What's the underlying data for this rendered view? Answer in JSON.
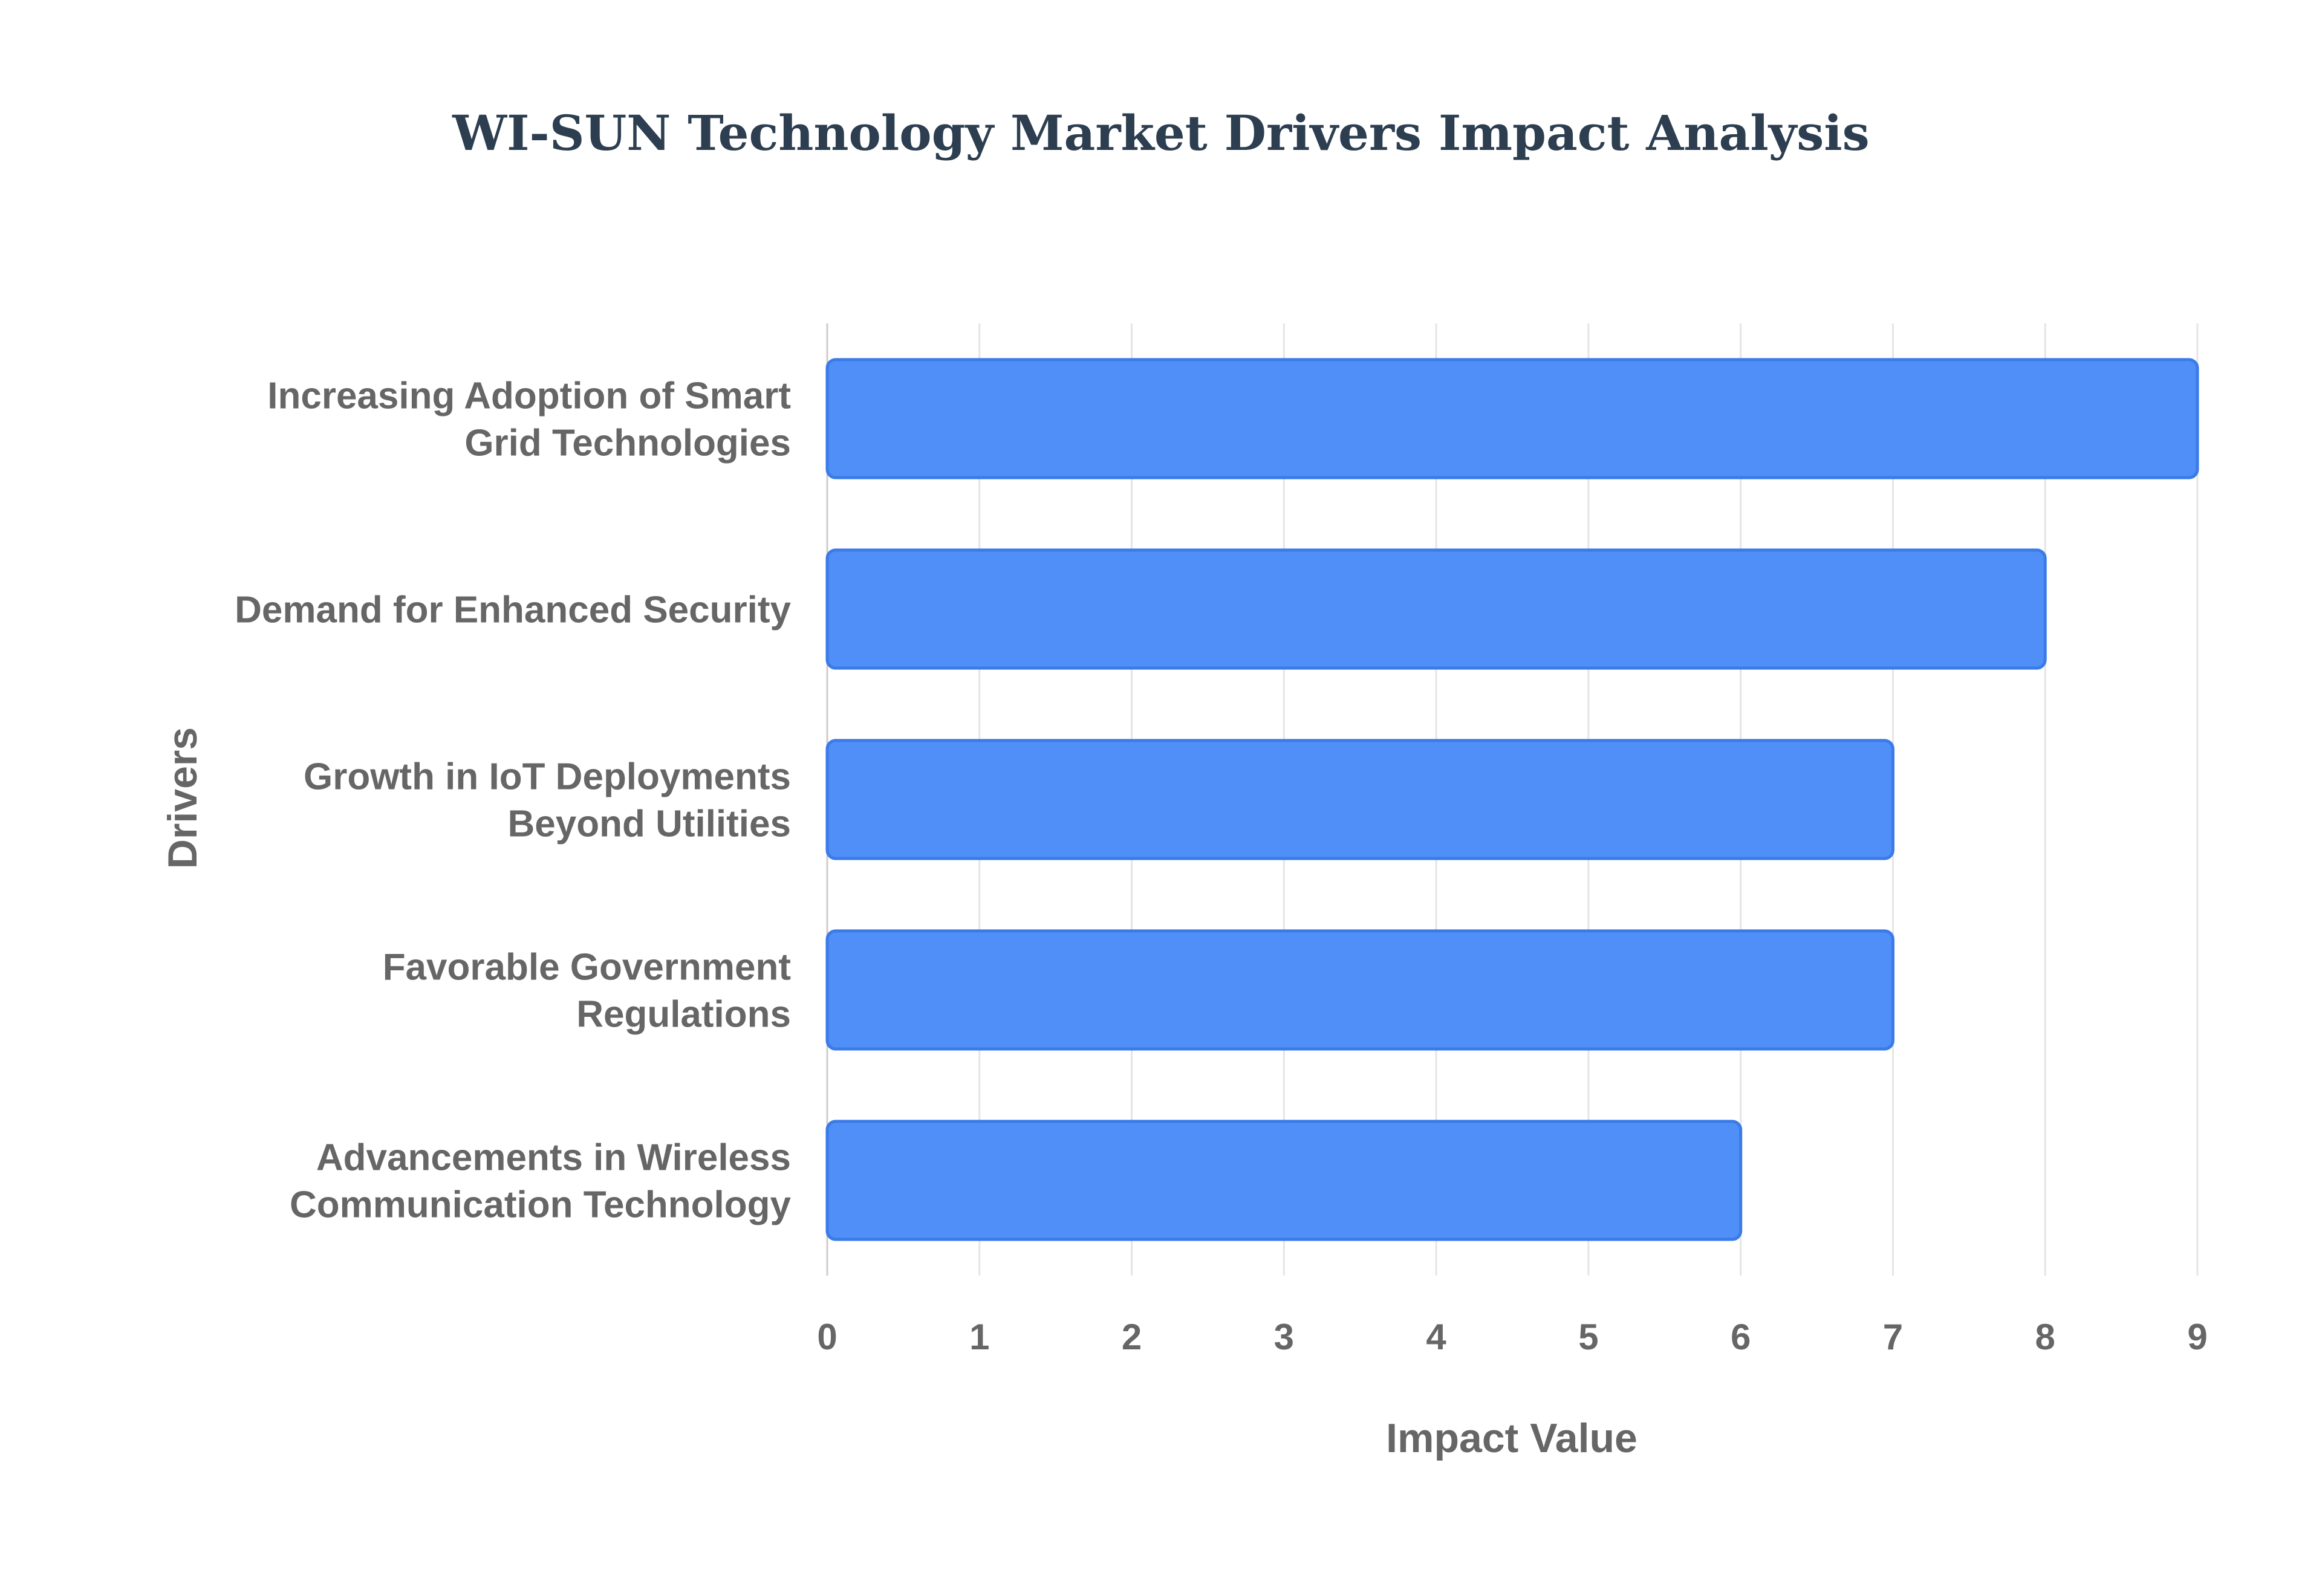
{
  "chart_data": {
    "type": "bar",
    "orientation": "horizontal",
    "title": "WI-SUN Technology Market Drivers Impact Analysis",
    "xlabel": "Impact Value",
    "ylabel": "Drivers",
    "categories": [
      [
        "Increasing Adoption of Smart",
        "Grid Technologies"
      ],
      [
        "Demand for Enhanced Security"
      ],
      [
        "Growth in IoT Deployments",
        "Beyond Utilities"
      ],
      [
        "Favorable Government",
        "Regulations"
      ],
      [
        "Advancements in Wireless",
        "Communication Technology"
      ]
    ],
    "values": [
      9,
      8,
      7,
      7,
      6
    ],
    "xlim": [
      0,
      9
    ],
    "xticks": [
      "0",
      "1",
      "2",
      "3",
      "4",
      "5",
      "6",
      "7",
      "8",
      "9"
    ],
    "grid": true,
    "legend": "none",
    "colors": {
      "bar_fill": "#4f8ff7",
      "bar_stroke": "#3a7be8",
      "title": "#2c3e50",
      "text": "#666666",
      "grid": "#e5e5e5"
    }
  }
}
